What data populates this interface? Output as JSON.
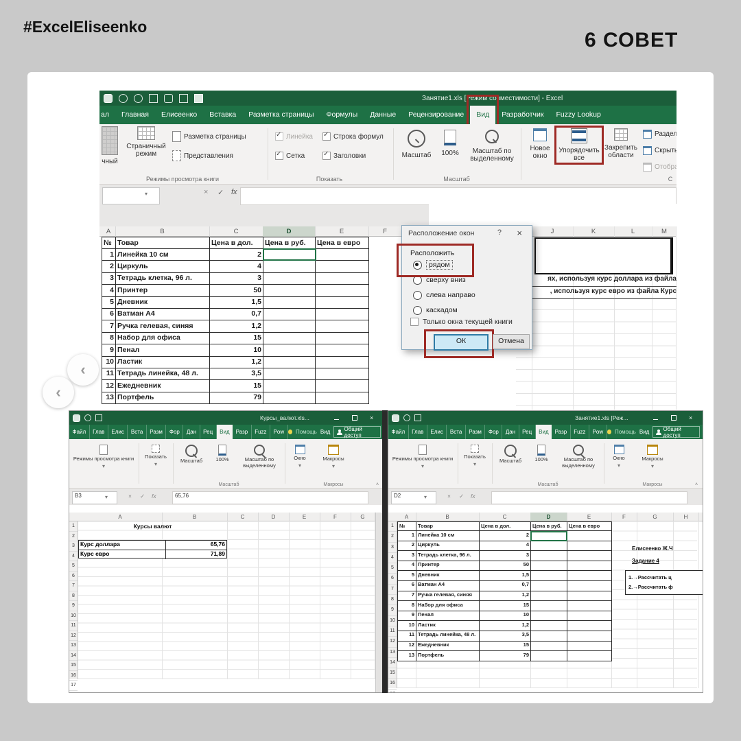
{
  "page": {
    "hashtag": "#ExcelEliseenko",
    "tip_number": "6 СОВЕТ"
  },
  "carousel": {
    "prev_glyph": "‹"
  },
  "colors": {
    "excel_green": "#1e7145",
    "excel_dark_green": "#1b5e3a",
    "annotation_red": "#9e2a25",
    "ok_border_blue": "#2e7ba6",
    "selection_green": "#217346"
  },
  "fx_icons": {
    "cancel": "×",
    "enter": "✓",
    "fx": "fx"
  },
  "top_window": {
    "title": "Занятие1.xls  [Режим совместимости] - Excel",
    "file_tab_partial": "ал",
    "tabs_before": [
      "Главная",
      "Елисеенко",
      "Вставка",
      "Разметка страницы",
      "Формулы",
      "Данные",
      "Рецензирование"
    ],
    "selected_tab": "Вид",
    "tabs_after": [
      "Разработчик",
      "Fuzzy Lookup"
    ],
    "ribbon": {
      "view_partial": "чный",
      "page_break_view": "Страничный режим",
      "page_layout": "Разметка страницы",
      "custom_views": "Представления",
      "check_ruler": "Линейка",
      "check_formula_bar": "Строка формул",
      "check_gridlines": "Сетка",
      "check_headings": "Заголовки",
      "zoom": "Масштаб",
      "zoom_100": "100%",
      "zoom_selection": "Масштаб по выделенному",
      "new_window": "Новое окно",
      "arrange_all": "Упорядочить все",
      "freeze_panes": "Закрепить области",
      "split": "Разделить",
      "hide": "Скрыть",
      "unhide": "Отобразить",
      "group_views": "Режимы просмотра книги",
      "group_show": "Показать",
      "group_zoom": "Масштаб",
      "group_cut": "С"
    },
    "name_box": "",
    "formula_value": "",
    "sheet": {
      "cols_left": [
        "A",
        "B",
        "C",
        "D",
        "E",
        "F"
      ],
      "cols_right": [
        "J",
        "K",
        "L",
        "M"
      ],
      "table": {
        "headers": [
          "№",
          "Товар",
          "Цена в дол.",
          "Цена в руб.",
          "Цена в евро"
        ],
        "rows": [
          {
            "n": "1",
            "name": "Линейка 10 см",
            "usd": "2"
          },
          {
            "n": "2",
            "name": "Циркуль",
            "usd": "4"
          },
          {
            "n": "3",
            "name": "Тетрадь клетка, 96 л.",
            "usd": "3"
          },
          {
            "n": "4",
            "name": "Принтер",
            "usd": "50"
          },
          {
            "n": "5",
            "name": "Дневник",
            "usd": "1,5"
          },
          {
            "n": "6",
            "name": "Ватман А4",
            "usd": "0,7"
          },
          {
            "n": "7",
            "name": "Ручка гелевая, синяя",
            "usd": "1,2"
          },
          {
            "n": "8",
            "name": "Набор для офиса",
            "usd": "15"
          },
          {
            "n": "9",
            "name": "Пенал",
            "usd": "10"
          },
          {
            "n": "10",
            "name": "Ластик",
            "usd": "1,2"
          },
          {
            "n": "11",
            "name": "Тетрадь линейка, 48 л.",
            "usd": "3,5"
          },
          {
            "n": "12",
            "name": "Ежедневник",
            "usd": "15"
          },
          {
            "n": "13",
            "name": "Портфель",
            "usd": "79"
          }
        ]
      },
      "side_text_1": "ях, используя курс доллара из файла",
      "side_text_2": ", используя курс евро из файла ",
      "side_text_2_bold": "Курс"
    },
    "dialog": {
      "title": "Расположение окон",
      "help_glyph": "?",
      "close_glyph": "×",
      "group_label": "Расположить",
      "option_selected": "рядом",
      "options_rest": [
        "сверху вниз",
        "слева направо",
        "каскадом"
      ],
      "checkbox_label": "Только окна текущей книги",
      "ok_label": "ОК",
      "cancel_label": "Отмена"
    }
  },
  "mini": {
    "tabs_before": [
      "Файл",
      "Глав",
      "Елис",
      "Вста",
      "Разм",
      "Фор",
      "Дан",
      "Рец"
    ],
    "selected_tab": "Вид",
    "tabs_after": [
      "Разр",
      "Fuzz",
      "Pow"
    ],
    "help_label": "Помощь",
    "input_label": "Вид",
    "share_label": "Общий доступ",
    "ribbon": {
      "views": "Режимы просмотра книги",
      "show": "Показать",
      "zoom": "Масштаб",
      "zoom_100": "100%",
      "zoom_selection": "Масштаб по выделенному",
      "window": "Окно",
      "macros": "Макросы",
      "group_zoom": "Масштаб",
      "group_macros": "Макросы"
    },
    "row_numbers": [
      "1",
      "2",
      "3",
      "4",
      "5",
      "6",
      "7",
      "8",
      "9",
      "10",
      "11",
      "12",
      "13",
      "14",
      "15",
      "16",
      "17"
    ]
  },
  "left_window": {
    "title": "Курсы_валют.xls...",
    "name_box": "B3",
    "formula_value": "65,76",
    "sheet": {
      "cols": [
        "A",
        "B",
        "C",
        "D",
        "E",
        "F",
        "G"
      ],
      "title_cell": "Курсы валют",
      "rows": [
        {
          "label": "Курс доллара",
          "value": "65,76"
        },
        {
          "label": "Курс евро",
          "value": "71,89"
        }
      ]
    }
  },
  "right_window": {
    "title": "Занятие1.xls  [Реж...",
    "name_box": "D2",
    "formula_value": "",
    "sheet": {
      "cols": [
        "A",
        "B",
        "C",
        "D",
        "E",
        "F",
        "G",
        "H"
      ]
    },
    "annotations": {
      "author": "Елисеенко Ж.Ч",
      "task": "Задание 4",
      "note1": "1.→Рассчитать ц",
      "note2": "2.→Рассчитать ф"
    }
  }
}
